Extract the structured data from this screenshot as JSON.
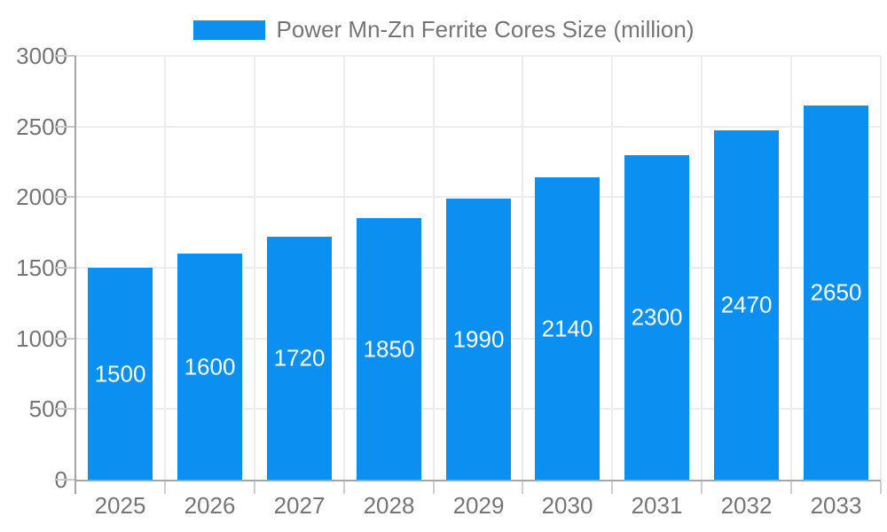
{
  "legend": {
    "label": "Power Mn-Zn Ferrite Cores Size (million)"
  },
  "colors": {
    "bar": "#0b90f2",
    "axis_text": "#757575",
    "annotation_text": "#ffffff",
    "gridline": "#ececec",
    "axis_line": "#a6a6a6",
    "tick": "#c9c9c9",
    "background": "#ffffff"
  },
  "chart_data": {
    "type": "bar",
    "title": "Power Mn-Zn Ferrite Cores Size (million)",
    "series_name": "Power Mn-Zn Ferrite Cores Size (million)",
    "categories": [
      "2025",
      "2026",
      "2027",
      "2028",
      "2029",
      "2030",
      "2031",
      "2032",
      "2033"
    ],
    "values": [
      1500,
      1600,
      1720,
      1850,
      1990,
      2140,
      2300,
      2470,
      2650
    ],
    "value_labels_position": "inside-center",
    "xlabel": "",
    "ylabel": "",
    "ylim": [
      0,
      3000
    ],
    "yticks": [
      0,
      500,
      1000,
      1500,
      2000,
      2500,
      3000
    ],
    "grid": true,
    "legend_position": "top-center",
    "bar_color": "#0b90f2"
  }
}
